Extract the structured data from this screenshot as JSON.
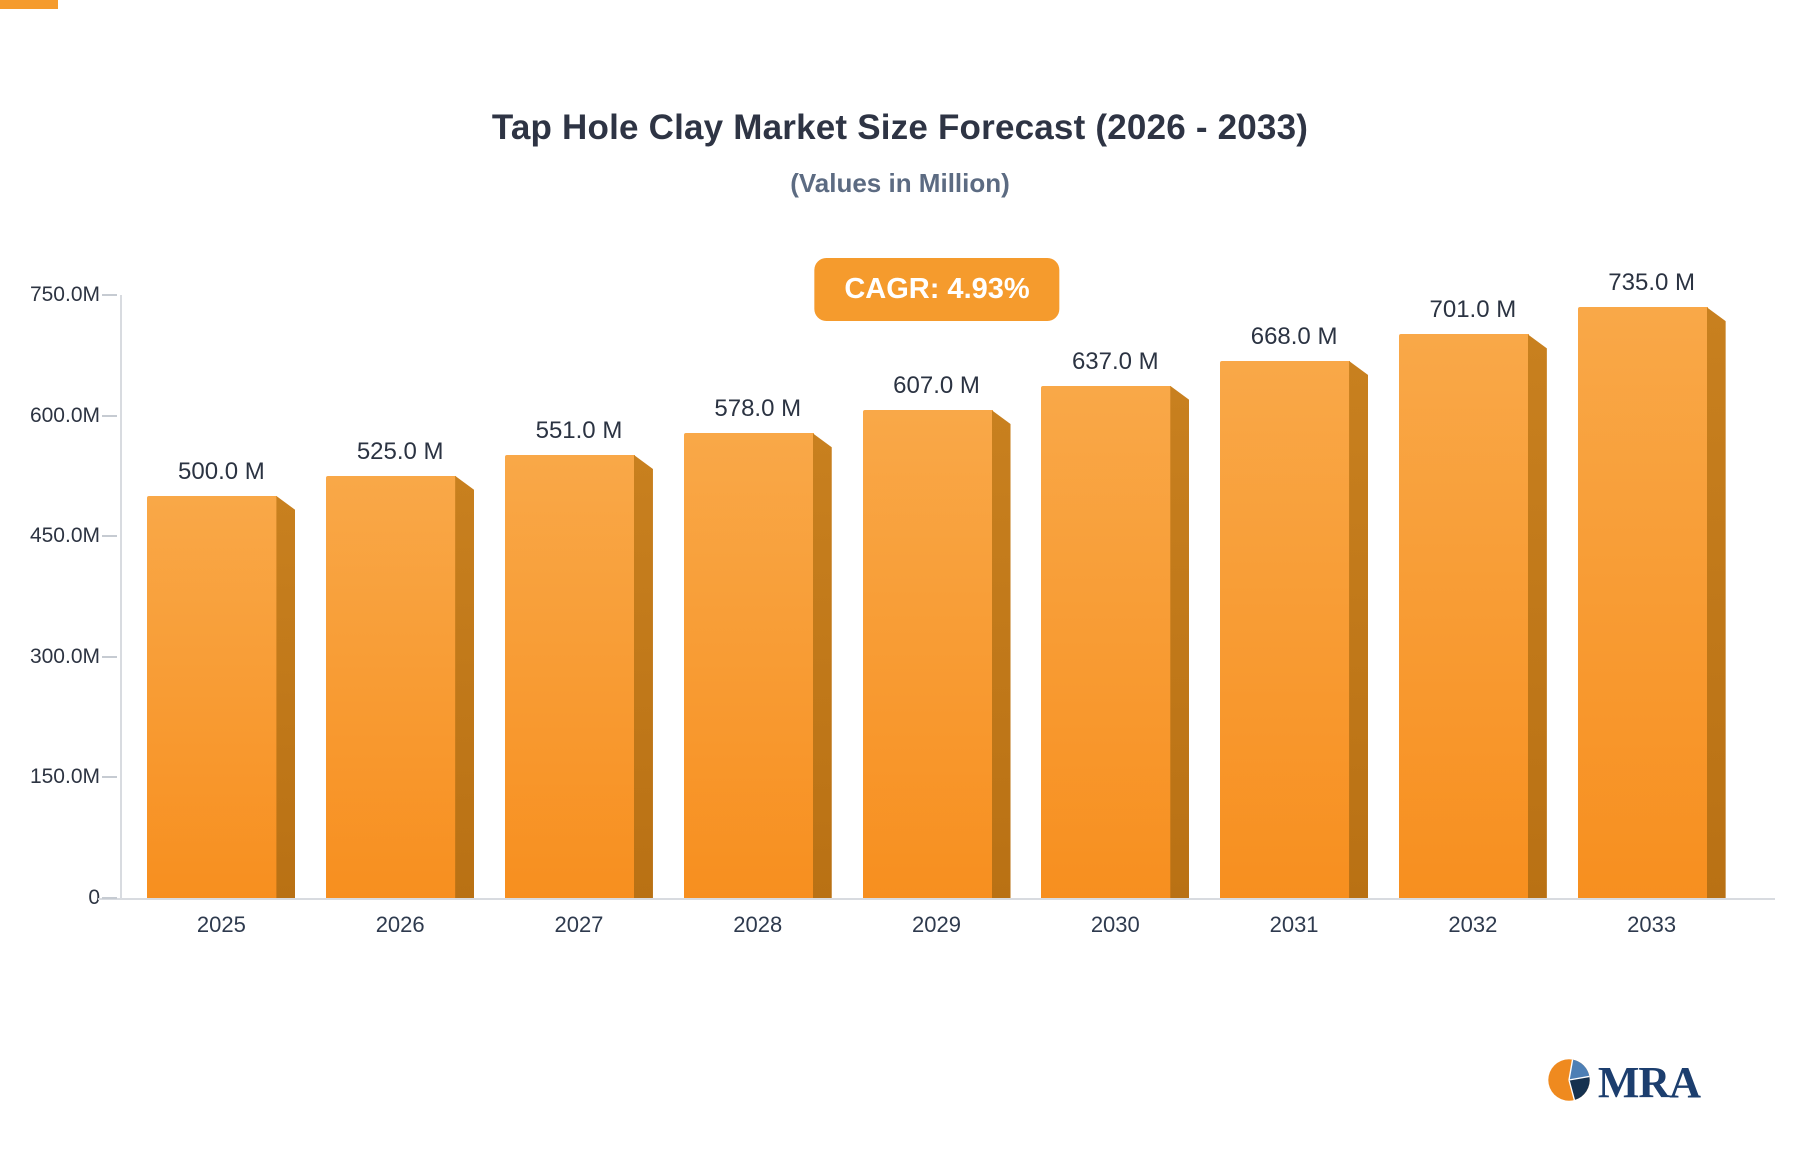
{
  "header": {
    "title": "Tap Hole Clay Market Size Forecast (2026 - 2033)",
    "subtitle": "(Values in Million)",
    "cagr_badge": "CAGR: 4.93%"
  },
  "logo": {
    "text": "MRA"
  },
  "colors": {
    "bar_front_top": "#f9a848",
    "bar_front_bottom": "#f78f1f",
    "bar_side": "#bf7a1e",
    "badge_background": "#f59b2d",
    "title_text": "#2e3444",
    "subtitle_text": "#5c6b82",
    "axis_line": "#d8dbe0",
    "logo_navy": "#1c3e6e"
  },
  "chart_data": {
    "type": "bar",
    "title": "Tap Hole Clay Market Size Forecast (2026 - 2033)",
    "subtitle": "(Values in Million)",
    "categories": [
      "2025",
      "2026",
      "2027",
      "2028",
      "2029",
      "2030",
      "2031",
      "2032",
      "2033"
    ],
    "values": [
      500.0,
      525.0,
      551.0,
      578.0,
      607.0,
      637.0,
      668.0,
      701.0,
      735.0
    ],
    "bar_labels": [
      "500.0 M",
      "525.0 M",
      "551.0 M",
      "578.0 M",
      "607.0 M",
      "637.0 M",
      "668.0 M",
      "701.0 M",
      "735.0 M"
    ],
    "xlabel": "",
    "ylabel": "",
    "ylim": [
      0,
      750
    ],
    "yticks": [
      0,
      150,
      300,
      450,
      600,
      750
    ],
    "ytick_labels": [
      "0",
      "150.0M",
      "300.0M",
      "450.0M",
      "600.0M",
      "750.0M"
    ],
    "grid": false,
    "legend": false,
    "annotations": [
      "CAGR: 4.93%"
    ]
  }
}
